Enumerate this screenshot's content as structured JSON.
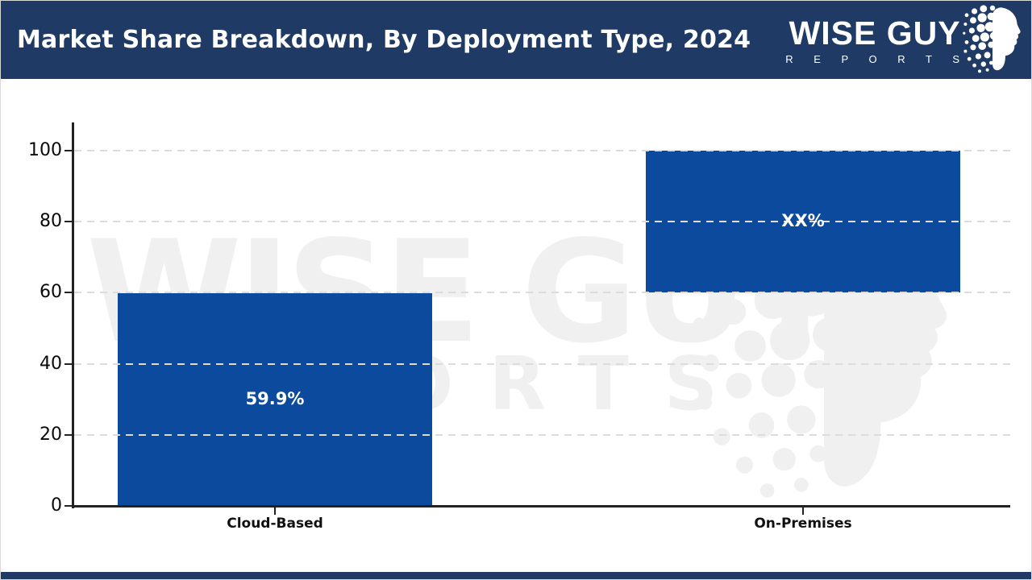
{
  "page": {
    "background": "#ffffff",
    "border_color": "#d9d9d9"
  },
  "header": {
    "title": "Market Share Breakdown, By Deployment Type, 2024",
    "bg_color": "#1F3A64",
    "text_color": "#ffffff",
    "logo": {
      "line1": "WISE GUY",
      "line2": "R E P O R T S"
    }
  },
  "watermark": {
    "line1": "WISE GUY",
    "line2": "REPORTS",
    "color": "#f0f0f0"
  },
  "footer": {
    "bg_color": "#1F3A64"
  },
  "chart_data": {
    "type": "bar",
    "subtype": "floating-range-bars",
    "title": "Market Share Breakdown, By Deployment Type, 2024",
    "categories": [
      "Cloud-Based",
      "On-Premises"
    ],
    "bars": [
      {
        "category": "Cloud-Based",
        "range": [
          0,
          59.9
        ],
        "label": "59.9%"
      },
      {
        "category": "On-Premises",
        "range": [
          60,
          100
        ],
        "label": "XX%"
      }
    ],
    "xlabel": "",
    "ylabel": "",
    "yticks": [
      0,
      20,
      40,
      60,
      80,
      100
    ],
    "ylim": [
      0,
      108
    ],
    "grid": true,
    "grid_style": "dashed",
    "grid_color": "#dcdcdc",
    "axis_color": "#222222",
    "tick_label_color": "#0a0a0a",
    "bar_color": "#0B4A9C",
    "bar_label_color": "#ffffff",
    "legend": false
  }
}
